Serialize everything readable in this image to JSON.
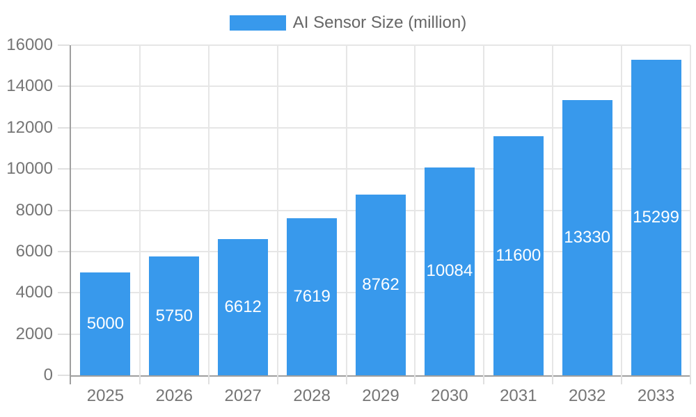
{
  "legend": {
    "label": "AI Sensor Size (million)"
  },
  "colors": {
    "bar": "#3899ec",
    "axis_line": "#9e9e9e",
    "grid_line": "#e6e6e6",
    "tick_mark": "#e0e0e0",
    "axis_text": "#757575",
    "legend_text": "#666666",
    "value_label_text": "#ffffff",
    "background": "#ffffff"
  },
  "chart_data": {
    "type": "bar",
    "title": "",
    "categories": [
      "2025",
      "2026",
      "2027",
      "2028",
      "2029",
      "2030",
      "2031",
      "2032",
      "2033"
    ],
    "series": [
      {
        "name": "AI Sensor Size (million)",
        "values": [
          5000,
          5750,
          6612,
          7619,
          8762,
          10084,
          11600,
          13330,
          15299
        ]
      }
    ],
    "xlabel": "",
    "ylabel": "",
    "ylim": [
      0,
      16000
    ],
    "ytick_step": 2000,
    "ytick_labels": [
      "0",
      "2000",
      "4000",
      "6000",
      "8000",
      "10000",
      "12000",
      "14000",
      "16000"
    ],
    "grid": true,
    "legend_position": "top",
    "value_labels": "inside-center-white"
  }
}
